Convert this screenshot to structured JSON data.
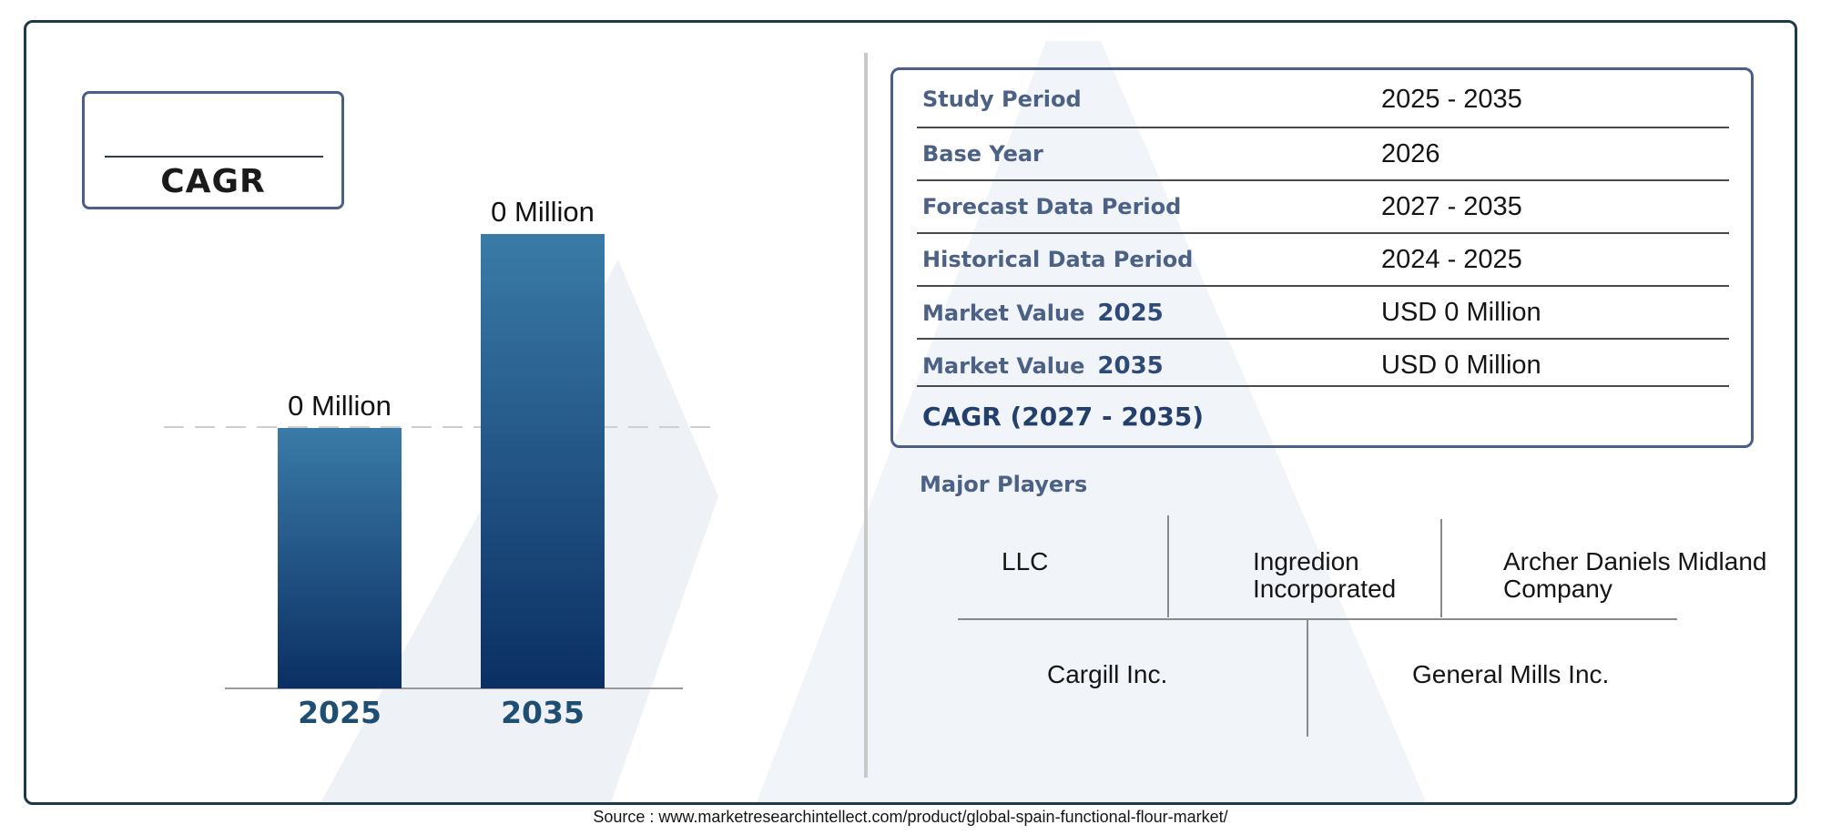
{
  "cagr_box": {
    "label": "CAGR"
  },
  "chart_data": {
    "type": "bar",
    "categories": [
      "2025",
      "2035"
    ],
    "values": [
      0,
      0
    ],
    "data_labels": [
      "0 Million",
      "0 Million"
    ],
    "title": "",
    "xlabel": "",
    "ylabel": "",
    "grid": false,
    "bar_color_top": "#3a7ba8",
    "bar_color_bottom": "#0b2f63",
    "category_label_color": "#1e4f73",
    "reference_line": "dashed"
  },
  "info_table": {
    "rows": [
      {
        "label": "Study Period",
        "year": "",
        "value": "2025 - 2035"
      },
      {
        "label": "Base Year",
        "year": "",
        "value": "2026"
      },
      {
        "label": "Forecast Data Period",
        "year": "",
        "value": "2027 - 2035"
      },
      {
        "label": "Historical Data Period",
        "year": "",
        "value": "2024 - 2025"
      },
      {
        "label": "Market Value",
        "year": "2025",
        "value": "USD 0 Million"
      },
      {
        "label": "Market Value",
        "year": "2035",
        "value": "USD 0 Million"
      },
      {
        "label": "CAGR (2027 - 2035)",
        "year": "",
        "value": ""
      }
    ]
  },
  "major_players": {
    "title": "Major Players",
    "players": [
      "LLC",
      "Ingredion Incorporated",
      "Archer Daniels Midland Company",
      "Cargill Inc.",
      "General Mills Inc."
    ],
    "players_lines": [
      [
        "LLC"
      ],
      [
        "Ingredion",
        "Incorporated"
      ],
      [
        "Archer Daniels Midland",
        "Company"
      ],
      [
        "Cargill Inc."
      ],
      [
        "General Mills Inc."
      ]
    ]
  },
  "source": "Source : www.marketresearchintellect.com/product/global-spain-functional-flour-market/",
  "colors": {
    "frame": "#1d3a4a",
    "box_border": "#4a5f86",
    "label": "#4b6286"
  }
}
